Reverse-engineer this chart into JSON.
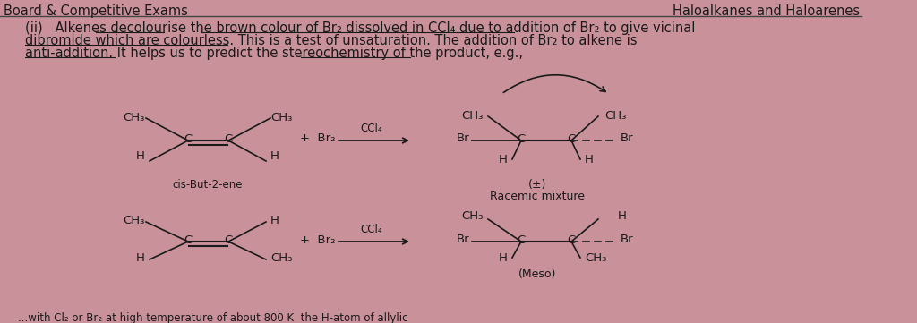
{
  "background_color": "#c9919a",
  "text_color": "#1a1a1a",
  "header_left": "Board & Competitive Exams",
  "header_right": "Haloalkanes and Haloarenes",
  "header_fontsize": 10.5,
  "body_fontsize": 10.5,
  "chem_fontsize": 9.5,
  "label_fontsize": 8.5,
  "label_cis": "cis-But-2-ene",
  "label_pm": "(±)",
  "label_racemic": "Racemic mixture",
  "label_meso": "(Meso)",
  "line1": "(ii)   Alkenes decolourise the brown colour of Br₂ dissolved in CCl₄ due to addition of Br₂ to give vicinal",
  "line2": "dibromide which are colourless. This is a test of unsaturation. The addition of Br₂ to alkene is",
  "line3": "anti-addition. It helps us to predict the stereochemistry of the product, e.g.,",
  "bottom_text": "...with Cl₂ or Br₂ at high temperature of about 800 K  the H-atom of allylic"
}
